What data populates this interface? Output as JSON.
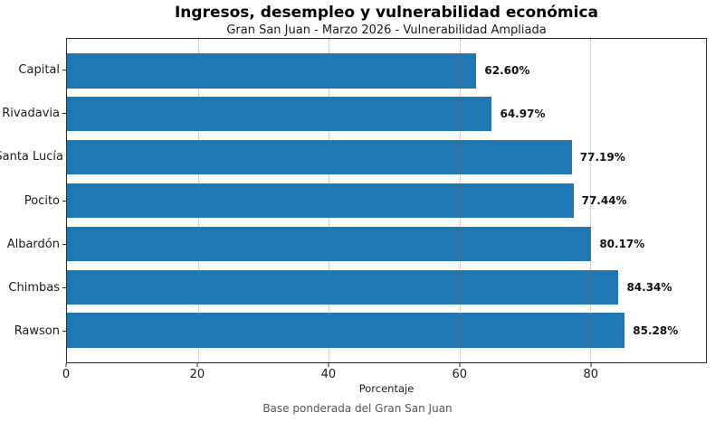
{
  "header": {
    "title": "Ingresos, desempleo y vulnerabilidad económica",
    "subtitle": "Gran San Juan - Marzo 2026 - Vulnerabilidad Ampliada"
  },
  "footer": {
    "note": "Base ponderada del Gran San Juan"
  },
  "colors": {
    "bar": "#1f77b4",
    "spine": "#2b2b2b",
    "grid": "rgba(110,110,110,0.55)",
    "footer_text": "#555555"
  },
  "chart_data": {
    "type": "bar",
    "orientation": "horizontal",
    "title": "Ingresos, desempleo y vulnerabilidad económica",
    "subtitle": "Gran San Juan - Marzo 2026 - Vulnerabilidad Ampliada",
    "categories": [
      "Capital",
      "Rivadavia",
      "Santa Lucía",
      "Pocito",
      "Albardón",
      "Chimbas",
      "Rawson"
    ],
    "values": [
      62.6,
      64.97,
      77.19,
      77.44,
      80.17,
      84.34,
      85.28
    ],
    "value_labels": [
      "62.60%",
      "64.97%",
      "77.19%",
      "77.44%",
      "80.17%",
      "84.34%",
      "85.28%"
    ],
    "xlabel": "Porcentaje",
    "ylabel": "",
    "xlim": [
      0,
      97.7
    ],
    "xticks": [
      0,
      20,
      40,
      60,
      80
    ],
    "grid": true,
    "grid_axis": "x",
    "legend": false,
    "caption": "Base ponderada del Gran San Juan"
  }
}
